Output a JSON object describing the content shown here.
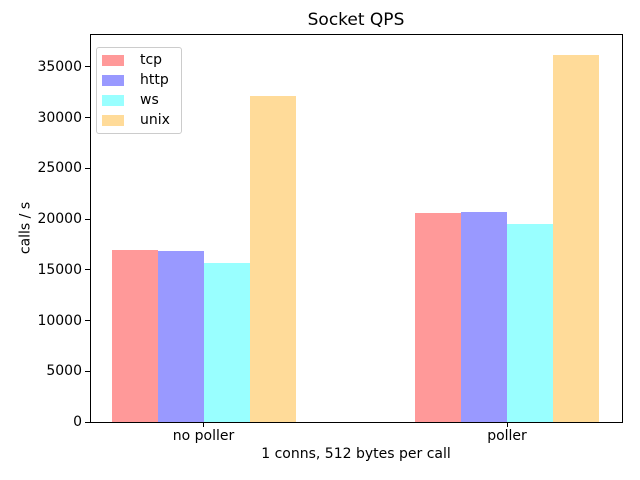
{
  "chart_data": {
    "type": "bar",
    "title": "Socket QPS",
    "xlabel": "1 conns, 512 bytes per call",
    "ylabel": "calls / s",
    "categories": [
      "no poller",
      "poller"
    ],
    "series": [
      {
        "name": "tcp",
        "color": "#ff9999",
        "values": [
          17000,
          20600
        ]
      },
      {
        "name": "http",
        "color": "#9999ff",
        "values": [
          16900,
          20700
        ]
      },
      {
        "name": "ws",
        "color": "#99ffff",
        "values": [
          15700,
          19500
        ]
      },
      {
        "name": "unix",
        "color": "#ffdb99",
        "values": [
          32100,
          36200
        ]
      }
    ],
    "yticks": [
      0,
      5000,
      10000,
      15000,
      20000,
      25000,
      30000,
      35000
    ],
    "ylim": [
      0,
      38250
    ],
    "grid": false,
    "legend_position": "upper left",
    "frame_color": "#000000",
    "legend_border_color": "#cccccc"
  }
}
